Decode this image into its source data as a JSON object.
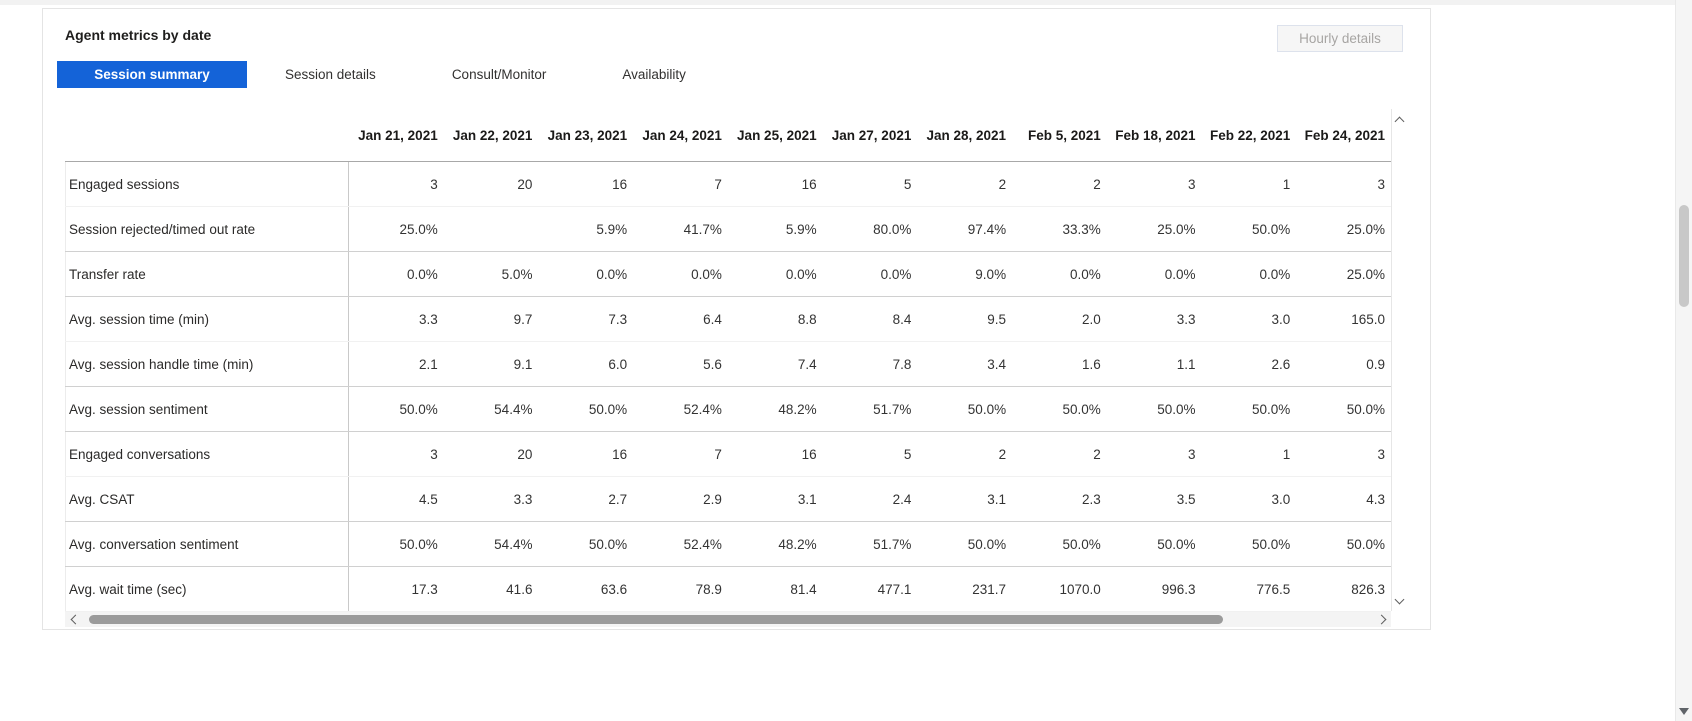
{
  "card": {
    "title": "Agent metrics by date",
    "hourly_button": "Hourly details",
    "tabs": [
      {
        "label": "Session summary",
        "active": true
      },
      {
        "label": "Session details",
        "active": false
      },
      {
        "label": "Consult/Monitor",
        "active": false
      },
      {
        "label": "Availability",
        "active": false
      }
    ]
  },
  "table": {
    "columns": [
      "Jan 21, 2021",
      "Jan 22, 2021",
      "Jan 23, 2021",
      "Jan 24, 2021",
      "Jan 25, 2021",
      "Jan 27, 2021",
      "Jan 28, 2021",
      "Feb 5, 2021",
      "Feb 18, 2021",
      "Feb 22, 2021",
      "Feb 24, 2021"
    ],
    "rows": [
      {
        "label": "Engaged sessions",
        "values": [
          "3",
          "20",
          "16",
          "7",
          "16",
          "5",
          "2",
          "2",
          "3",
          "1",
          "3"
        ],
        "group_end": false
      },
      {
        "label": "Session rejected/timed out rate",
        "values": [
          "25.0%",
          "",
          "5.9%",
          "41.7%",
          "5.9%",
          "80.0%",
          "97.4%",
          "33.3%",
          "25.0%",
          "50.0%",
          "25.0%"
        ],
        "group_end": true
      },
      {
        "label": "Transfer rate",
        "values": [
          "0.0%",
          "5.0%",
          "0.0%",
          "0.0%",
          "0.0%",
          "0.0%",
          "9.0%",
          "0.0%",
          "0.0%",
          "0.0%",
          "25.0%"
        ],
        "group_end": true
      },
      {
        "label": "Avg. session time (min)",
        "values": [
          "3.3",
          "9.7",
          "7.3",
          "6.4",
          "8.8",
          "8.4",
          "9.5",
          "2.0",
          "3.3",
          "3.0",
          "165.0"
        ],
        "group_end": false
      },
      {
        "label": "Avg. session handle time (min)",
        "values": [
          "2.1",
          "9.1",
          "6.0",
          "5.6",
          "7.4",
          "7.8",
          "3.4",
          "1.6",
          "1.1",
          "2.6",
          "0.9"
        ],
        "group_end": true
      },
      {
        "label": "Avg. session sentiment",
        "values": [
          "50.0%",
          "54.4%",
          "50.0%",
          "52.4%",
          "48.2%",
          "51.7%",
          "50.0%",
          "50.0%",
          "50.0%",
          "50.0%",
          "50.0%"
        ],
        "group_end": true
      },
      {
        "label": "Engaged conversations",
        "values": [
          "3",
          "20",
          "16",
          "7",
          "16",
          "5",
          "2",
          "2",
          "3",
          "1",
          "3"
        ],
        "group_end": false
      },
      {
        "label": "Avg. CSAT",
        "values": [
          "4.5",
          "3.3",
          "2.7",
          "2.9",
          "3.1",
          "2.4",
          "3.1",
          "2.3",
          "3.5",
          "3.0",
          "4.3"
        ],
        "group_end": true
      },
      {
        "label": "Avg. conversation sentiment",
        "values": [
          "50.0%",
          "54.4%",
          "50.0%",
          "52.4%",
          "48.2%",
          "51.7%",
          "50.0%",
          "50.0%",
          "50.0%",
          "50.0%",
          "50.0%"
        ],
        "group_end": true
      },
      {
        "label": "Avg. wait time (sec)",
        "values": [
          "17.3",
          "41.6",
          "63.6",
          "78.9",
          "81.4",
          "477.1",
          "231.7",
          "1070.0",
          "996.3",
          "776.5",
          "826.3"
        ],
        "group_end": false
      }
    ]
  },
  "icons": {
    "table_scroll_up": "chevron-up",
    "table_scroll_down": "chevron-down",
    "table_scroll_left": "chevron-left",
    "table_scroll_right": "chevron-right",
    "page_scroll_down": "triangle-down"
  },
  "colors": {
    "accent": "#1463d8",
    "active_tab_text": "#ffffff",
    "disabled_button_bg": "#f6f6f6",
    "disabled_button_text": "#a7a5a3",
    "header_separator": "#a8a8a8",
    "group_separator": "#d0d0d0",
    "scroll_thumb": "#9b9b9b"
  }
}
